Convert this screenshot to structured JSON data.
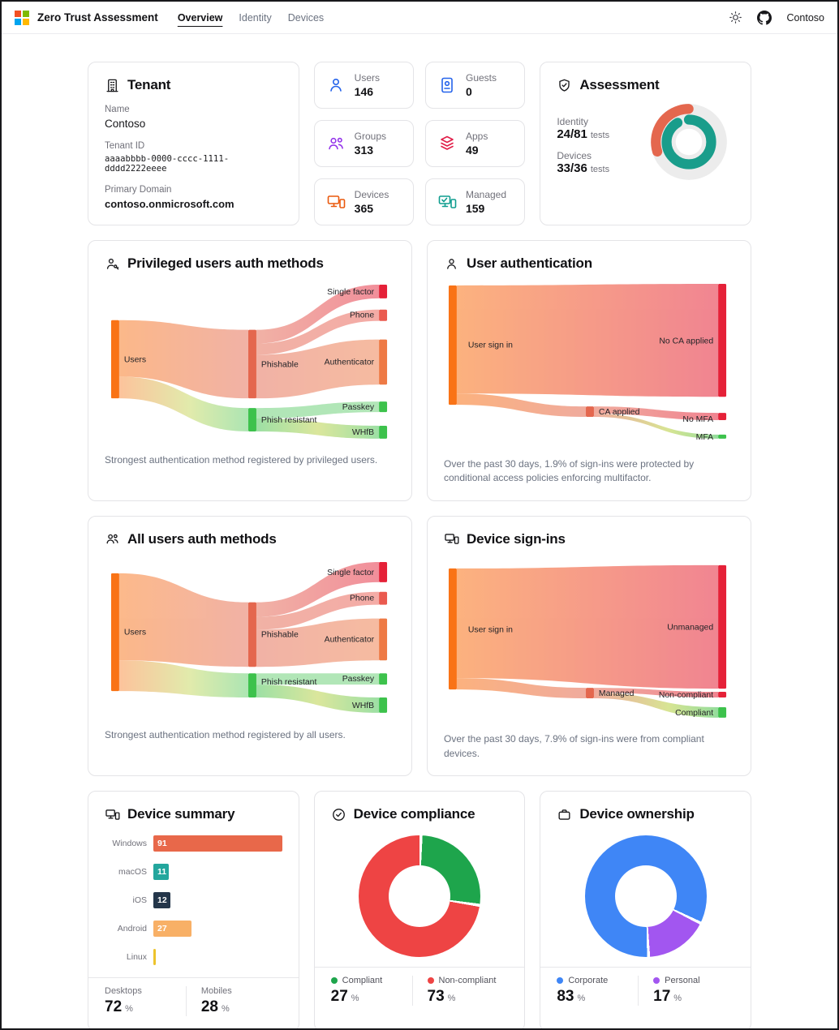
{
  "palette": {
    "ms_logo": [
      "#f25022",
      "#7fba00",
      "#00a4ef",
      "#ffb900"
    ],
    "orange": "#f97316",
    "salmon": "#e4674e",
    "red": "#e52138",
    "green": "#3dc24c",
    "yellow_green": "#b8cf3c",
    "teal": "#199d8b",
    "track_gray": "#ececec"
  },
  "header": {
    "title": "Zero Trust Assessment",
    "nav": [
      {
        "label": "Overview",
        "active": true
      },
      {
        "label": "Identity",
        "active": false
      },
      {
        "label": "Devices",
        "active": false
      }
    ],
    "theme_icon": "sun-icon",
    "repo_icon": "github-icon",
    "account": "Contoso"
  },
  "tenant": {
    "title": "Tenant",
    "name_label": "Name",
    "name": "Contoso",
    "id_label": "Tenant ID",
    "id": "aaaabbbb-0000-cccc-1111-dddd2222eeee",
    "domain_label": "Primary Domain",
    "domain": "contoso.onmicrosoft.com"
  },
  "stats": [
    {
      "label": "Users",
      "value": "146",
      "icon": "users-icon",
      "color": "#2563eb"
    },
    {
      "label": "Guests",
      "value": "0",
      "icon": "guest-passport-icon",
      "color": "#2563eb"
    },
    {
      "label": "Groups",
      "value": "313",
      "icon": "groups-icon",
      "color": "#9333ea"
    },
    {
      "label": "Apps",
      "value": "49",
      "icon": "apps-layers-icon",
      "color": "#e11d48"
    },
    {
      "label": "Devices",
      "value": "365",
      "icon": "devices-icon",
      "color": "#ea580c"
    },
    {
      "label": "Managed",
      "value": "159",
      "icon": "managed-devices-icon",
      "color": "#0f9d8f"
    }
  ],
  "chart_data": [
    {
      "id": "privileged_users_auth_methods",
      "type": "sankey",
      "title": "Privileged users auth methods",
      "caption": "Strongest authentication method registered by privileged users.",
      "nodes": [
        "Users",
        "Phishable",
        "Phish resistant",
        "Single factor",
        "Phone",
        "Authenticator",
        "Passkey",
        "WHfB"
      ],
      "links": [
        {
          "source": "Users",
          "target": "Phishable"
        },
        {
          "source": "Users",
          "target": "Phish resistant"
        },
        {
          "source": "Phishable",
          "target": "Single factor"
        },
        {
          "source": "Phishable",
          "target": "Phone"
        },
        {
          "source": "Phishable",
          "target": "Authenticator"
        },
        {
          "source": "Phish resistant",
          "target": "Passkey"
        },
        {
          "source": "Phish resistant",
          "target": "WHfB"
        }
      ]
    },
    {
      "id": "user_authentication",
      "type": "sankey",
      "title": "User authentication",
      "caption": "Over the past 30 days, 1.9% of sign-ins were protected by conditional access policies enforcing multifactor.",
      "nodes": [
        "User sign in",
        "No CA applied",
        "CA applied",
        "No MFA",
        "MFA"
      ],
      "links": [
        {
          "source": "User sign in",
          "target": "No CA applied"
        },
        {
          "source": "User sign in",
          "target": "CA applied"
        },
        {
          "source": "CA applied",
          "target": "No MFA"
        },
        {
          "source": "CA applied",
          "target": "MFA"
        }
      ]
    },
    {
      "id": "all_users_auth_methods",
      "type": "sankey",
      "title": "All users auth methods",
      "caption": "Strongest authentication method registered by all users.",
      "nodes": [
        "Users",
        "Phishable",
        "Phish resistant",
        "Single factor",
        "Phone",
        "Authenticator",
        "Passkey",
        "WHfB"
      ],
      "links": [
        {
          "source": "Users",
          "target": "Phishable"
        },
        {
          "source": "Users",
          "target": "Phish resistant"
        },
        {
          "source": "Phishable",
          "target": "Single factor"
        },
        {
          "source": "Phishable",
          "target": "Phone"
        },
        {
          "source": "Phishable",
          "target": "Authenticator"
        },
        {
          "source": "Phish resistant",
          "target": "Passkey"
        },
        {
          "source": "Phish resistant",
          "target": "WHfB"
        }
      ]
    },
    {
      "id": "device_sign_ins",
      "type": "sankey",
      "title": "Device sign-ins",
      "caption": "Over the past 30 days, 7.9% of sign-ins were from compliant devices.",
      "nodes": [
        "User sign in",
        "Unmanaged",
        "Managed",
        "Non-compliant",
        "Compliant"
      ],
      "links": [
        {
          "source": "User sign in",
          "target": "Unmanaged"
        },
        {
          "source": "User sign in",
          "target": "Managed"
        },
        {
          "source": "Managed",
          "target": "Non-compliant"
        },
        {
          "source": "Managed",
          "target": "Compliant"
        }
      ]
    },
    {
      "id": "device_summary",
      "type": "bar",
      "title": "Device summary",
      "categories": [
        "Windows",
        "macOS",
        "iOS",
        "Android",
        "Linux"
      ],
      "values": [
        91,
        11,
        12,
        27,
        2
      ],
      "value_labels": [
        "91",
        "11",
        "12",
        "27",
        ""
      ],
      "colors": [
        "#e8684a",
        "#23a69d",
        "#24364a",
        "#f8b066",
        "#edc32c"
      ],
      "footer": [
        {
          "label": "Desktops",
          "value": "72",
          "unit": "%"
        },
        {
          "label": "Mobiles",
          "value": "28",
          "unit": "%"
        }
      ]
    },
    {
      "id": "device_compliance",
      "type": "pie",
      "title": "Device compliance",
      "unit": "%",
      "slices": [
        {
          "label": "Compliant",
          "value": 27,
          "color": "#1ea54c"
        },
        {
          "label": "Non-compliant",
          "value": 73,
          "color": "#ee4444"
        }
      ]
    },
    {
      "id": "device_ownership",
      "type": "pie",
      "title": "Device ownership",
      "unit": "%",
      "slices": [
        {
          "label": "Corporate",
          "value": 83,
          "color": "#3f86f6"
        },
        {
          "label": "Personal",
          "value": 17,
          "color": "#a256f0"
        }
      ]
    },
    {
      "id": "assessment_progress",
      "type": "donut",
      "title": "Assessment",
      "track_color": "#ececec",
      "series": [
        {
          "name": "Identity",
          "value_label": "24/81",
          "suffix": "tests",
          "pct": 29.6,
          "color": "#e4674e"
        },
        {
          "name": "Devices",
          "value_label": "33/36",
          "suffix": "tests",
          "pct": 91.7,
          "color": "#199d8b"
        }
      ]
    }
  ]
}
